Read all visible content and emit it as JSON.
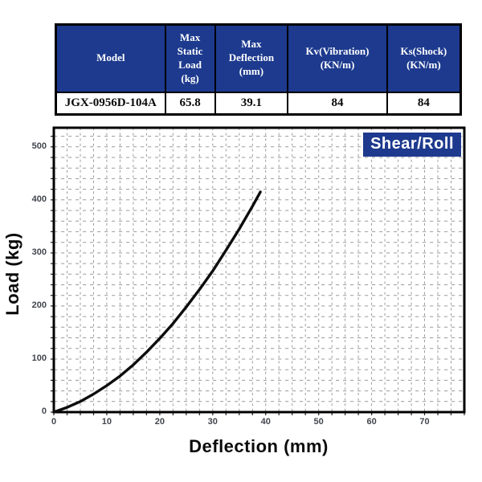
{
  "table": {
    "headers": [
      "Model",
      "Max\nStatic\nLoad\n(kg)",
      "Max\nDeflection\n(mm)",
      "Kv(Vibration)\n(KN/m)",
      "Ks(Shock)\n(KN/m)"
    ],
    "rows": [
      [
        "JGX-0956D-104A",
        "65.8",
        "39.1",
        "84",
        "84"
      ]
    ]
  },
  "chart_data": {
    "type": "line",
    "series_label": "Shear/Roll",
    "xlabel": "Deflection (mm)",
    "ylabel": "Load (kg)",
    "x_ticks": [
      0,
      10,
      20,
      30,
      40,
      50,
      60,
      70
    ],
    "y_ticks": [
      0,
      100,
      200,
      300,
      400,
      500
    ],
    "xlim": [
      0,
      77.5
    ],
    "ylim": [
      0,
      536
    ],
    "x_minor_step": 2.5,
    "y_minor_step": 20,
    "grid": "dashed",
    "legend_position": "top-right",
    "points": [
      [
        0,
        0
      ],
      [
        2.5,
        9
      ],
      [
        5,
        20
      ],
      [
        7.5,
        34
      ],
      [
        10,
        50
      ],
      [
        12.5,
        68
      ],
      [
        15,
        89
      ],
      [
        17.5,
        113
      ],
      [
        20,
        139
      ],
      [
        22.5,
        167
      ],
      [
        25,
        198
      ],
      [
        27.5,
        231
      ],
      [
        30,
        266
      ],
      [
        32.5,
        305
      ],
      [
        35,
        345
      ],
      [
        37.5,
        388
      ],
      [
        39,
        415
      ]
    ]
  },
  "colors": {
    "accent_blue": "#1d3a8e",
    "header_text": "#ffffff",
    "curve": "#0d0d0d",
    "grid": "#9b9b9b",
    "tick_text": "#42464d",
    "border": "#000000"
  }
}
